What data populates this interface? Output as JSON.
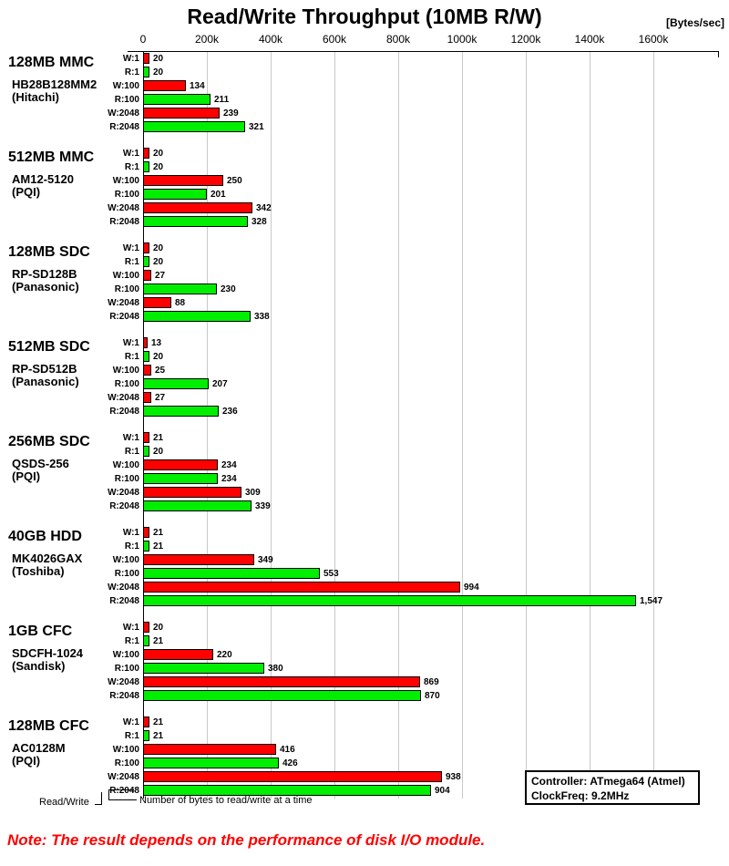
{
  "chart_data": {
    "type": "bar",
    "orientation": "horizontal",
    "title": "Read/Write Throughput (10MB R/W)",
    "unit_label": "[Bytes/sec]",
    "x_axis": {
      "tick_labels": [
        "0",
        "200k",
        "400k",
        "600k",
        "800k",
        "1000k",
        "1200k",
        "1400k",
        "1600k"
      ],
      "min": 0,
      "max": 1600000,
      "gridlines": true
    },
    "bar_labels": [
      "W:1",
      "R:1",
      "W:100",
      "R:100",
      "W:2048",
      "R:2048"
    ],
    "series_colors": {
      "write": "#ff0000",
      "read": "#00ee00"
    },
    "values_unit": "kBytes/sec",
    "groups": [
      {
        "device": "128MB MMC",
        "model": "HB28B128MM2",
        "maker": "(Hitachi)",
        "values": [
          20,
          20,
          134,
          211,
          239,
          321
        ],
        "value_labels": [
          "20",
          "20",
          "134",
          "211",
          "239",
          "321"
        ]
      },
      {
        "device": "512MB MMC",
        "model": "AM12-5120",
        "maker": "(PQI)",
        "values": [
          20,
          20,
          250,
          201,
          342,
          328
        ],
        "value_labels": [
          "20",
          "20",
          "250",
          "201",
          "342",
          "328"
        ]
      },
      {
        "device": "128MB SDC",
        "model": "RP-SD128B",
        "maker": "(Panasonic)",
        "values": [
          20,
          20,
          27,
          230,
          88,
          338
        ],
        "value_labels": [
          "20",
          "20",
          "27",
          "230",
          "88",
          "338"
        ]
      },
      {
        "device": "512MB SDC",
        "model": "RP-SD512B",
        "maker": "(Panasonic)",
        "values": [
          13,
          20,
          25,
          207,
          27,
          236
        ],
        "value_labels": [
          "13",
          "20",
          "25",
          "207",
          "27",
          "236"
        ]
      },
      {
        "device": "256MB SDC",
        "model": "QSDS-256",
        "maker": "(PQI)",
        "values": [
          21,
          20,
          234,
          234,
          309,
          339
        ],
        "value_labels": [
          "21",
          "20",
          "234",
          "234",
          "309",
          "339"
        ]
      },
      {
        "device": "40GB HDD",
        "model": "MK4026GAX",
        "maker": "(Toshiba)",
        "values": [
          21,
          21,
          349,
          553,
          994,
          1547
        ],
        "value_labels": [
          "21",
          "21",
          "349",
          "553",
          "994",
          "1,547"
        ]
      },
      {
        "device": "1GB CFC",
        "model": "SDCFH-1024",
        "maker": "(Sandisk)",
        "values": [
          20,
          21,
          220,
          380,
          869,
          870
        ],
        "value_labels": [
          "20",
          "21",
          "220",
          "380",
          "869",
          "870"
        ]
      },
      {
        "device": "128MB CFC",
        "model": "AC0128M",
        "maker": "(PQI)",
        "values": [
          21,
          21,
          416,
          426,
          938,
          904
        ],
        "value_labels": [
          "21",
          "21",
          "416",
          "426",
          "938",
          "904"
        ]
      }
    ],
    "annotations": {
      "read_write": "Read/Write",
      "bytes_at_a_time": "Number of bytes to read/write at a time"
    },
    "legend_box": {
      "line1": "Controller: ATmega64 (Atmel)",
      "line2": "ClockFreq: 9.2MHz"
    },
    "note": "Note: The result depends on the performance of disk I/O module.",
    "note_color": "#ff0000"
  }
}
